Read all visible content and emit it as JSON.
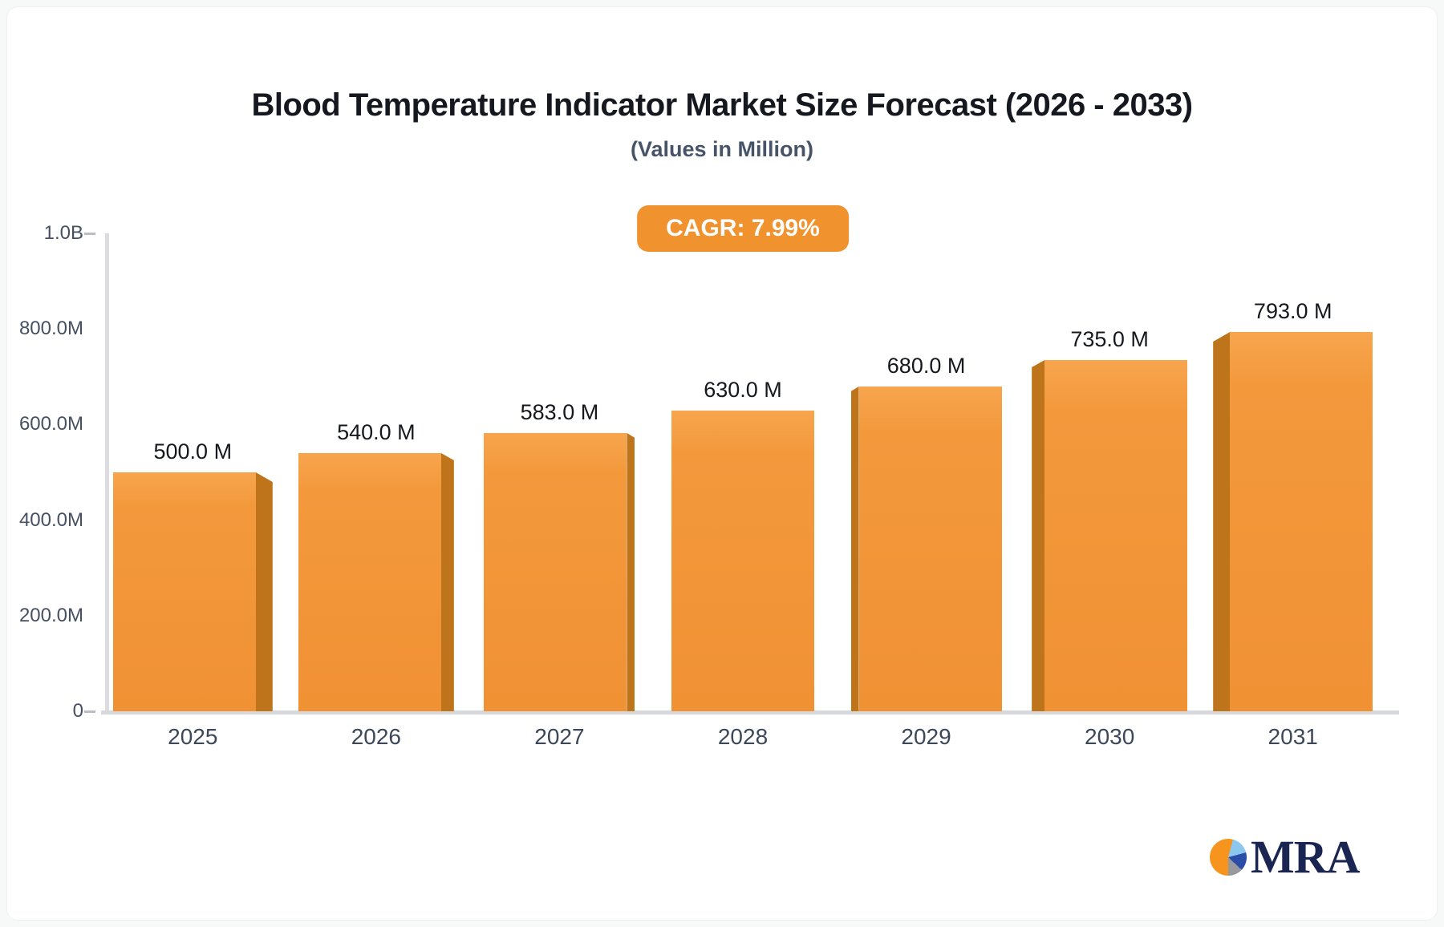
{
  "header": {
    "title": "Blood Temperature Indicator Market Size Forecast (2026 - 2033)",
    "subtitle": "(Values in Million)"
  },
  "badge": {
    "label": "CAGR: 7.99%",
    "bg": "#f0922e",
    "text_color": "#ffffff"
  },
  "chart_data": {
    "type": "bar",
    "title": "Blood Temperature Indicator Market Size Forecast (2026 - 2033)",
    "subtitle": "(Values in Million)",
    "categories": [
      "2025",
      "2026",
      "2027",
      "2028",
      "2029",
      "2030",
      "2031"
    ],
    "values": [
      500,
      540,
      583,
      630,
      680,
      735,
      793
    ],
    "unit": "Million",
    "value_labels": [
      "500.0 M",
      "540.0 M",
      "583.0 M",
      "630.0 M",
      "680.0 M",
      "735.0 M",
      "793.0 M"
    ],
    "y_axis": [
      {
        "label": "1.0B",
        "value": 1000,
        "dash": true
      },
      {
        "label": "800.0M",
        "value": 800,
        "dash": false
      },
      {
        "label": "600.0M",
        "value": 600,
        "dash": false
      },
      {
        "label": "400.0M",
        "value": 400,
        "dash": false
      },
      {
        "label": "200.0M",
        "value": 200,
        "dash": false
      },
      {
        "label": "0",
        "value": 0,
        "dash": true
      }
    ],
    "ylim": [
      0,
      1000
    ],
    "xlabel": "",
    "ylabel": "",
    "grid": false,
    "legend": null,
    "bar_color": "#f3993c",
    "bar_color_light": "#f7a54e",
    "bar_color_dark": "#f09134",
    "bar_side_color": "#bd741b",
    "effect": "3d-center-perspective"
  },
  "logo": {
    "text": "MRA",
    "icon": "pie-chart",
    "pie_colors": [
      "#f7941e",
      "#8cc8ee",
      "#2a4da8",
      "#98999e"
    ],
    "text_color": "#1b2552"
  }
}
